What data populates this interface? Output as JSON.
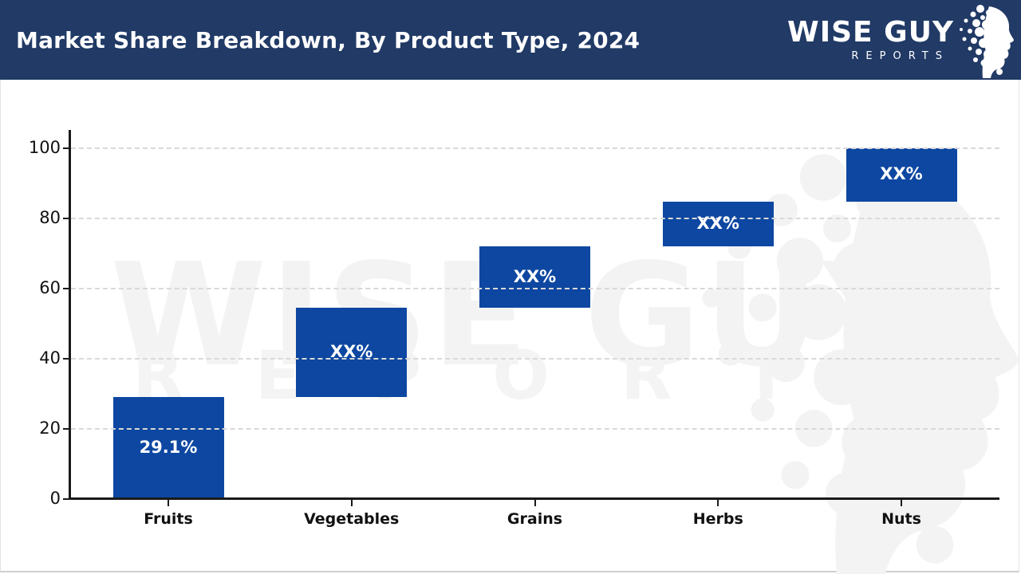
{
  "header": {
    "title": "Market Share Breakdown, By Product Type, 2024",
    "logo": {
      "line1": "WISE GUY",
      "line2": "REPORTS"
    }
  },
  "watermark": {
    "line1": "WISE GUY",
    "line2": "REPORTS"
  },
  "colors": {
    "header_bg": "#213a66",
    "bar_blue": "#0d47a1",
    "grid_gray": "#d9d9d9",
    "axis_black": "#1a1a1a",
    "label_white": "#ffffff",
    "watermark_gray": "#f3f3f3"
  },
  "chart_data": {
    "type": "bar",
    "subtype": "waterfall-floating-bars",
    "title": "Market Share Breakdown, By Product Type, 2024",
    "xlabel": "",
    "ylabel": "",
    "categories": [
      "Fruits",
      "Vegetables",
      "Grains",
      "Herbs",
      "Nuts"
    ],
    "bars": [
      {
        "category": "Fruits",
        "start": 0,
        "end": 29.1,
        "value": 29.1,
        "label": "29.1%"
      },
      {
        "category": "Vegetables",
        "start": 29.1,
        "end": 54.5,
        "value": 25.4,
        "label": "XX%"
      },
      {
        "category": "Grains",
        "start": 54.5,
        "end": 72.0,
        "value": 17.5,
        "label": "XX%"
      },
      {
        "category": "Herbs",
        "start": 72.0,
        "end": 84.8,
        "value": 12.8,
        "label": "XX%"
      },
      {
        "category": "Nuts",
        "start": 84.8,
        "end": 100.0,
        "value": 15.2,
        "label": "XX%"
      }
    ],
    "yticks": [
      0,
      20,
      40,
      60,
      80,
      100
    ],
    "ylim": [
      0,
      105
    ],
    "grid": "dashed-horizontal-above-bars",
    "legend": "none"
  }
}
